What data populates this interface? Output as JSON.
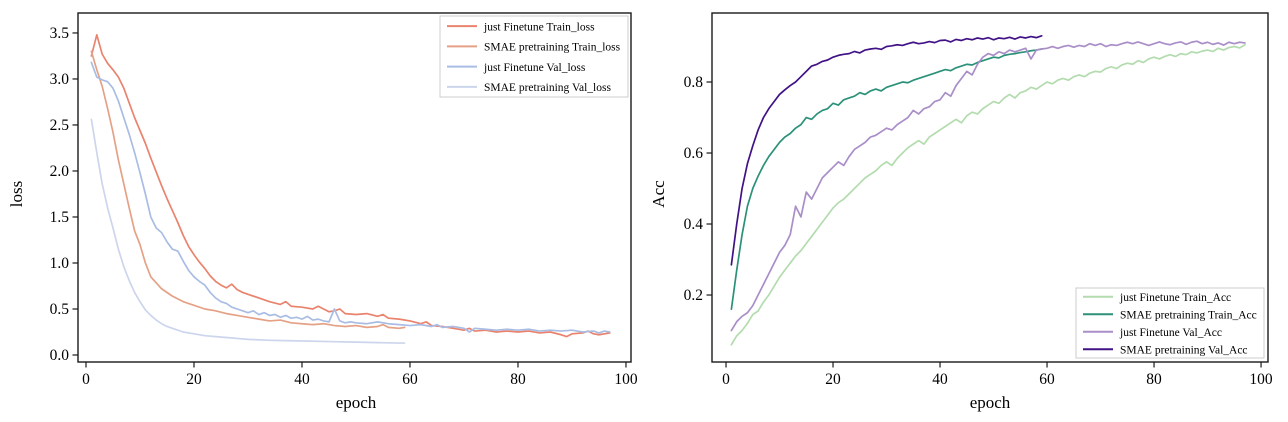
{
  "figure": {
    "background": "#ffffff",
    "text_color": "#000000",
    "spine_color": "#1a1a1a",
    "legend_border_color": "#cccccc",
    "legend_background": "#ffffff"
  },
  "chart_data": [
    {
      "id": "loss-chart",
      "type": "line",
      "title": "",
      "xlabel": "epoch",
      "ylabel": "loss",
      "grid": false,
      "legend_position": "upper right",
      "xlim": [
        -1.48,
        100.93
      ],
      "ylim": [
        -0.076,
        3.717
      ],
      "xticks": [
        {
          "v": 0,
          "label": "0"
        },
        {
          "v": 20,
          "label": "20"
        },
        {
          "v": 40,
          "label": "40"
        },
        {
          "v": 60,
          "label": "60"
        },
        {
          "v": 80,
          "label": "80"
        },
        {
          "v": 100,
          "label": "100"
        }
      ],
      "yticks": [
        {
          "v": 0.0,
          "label": "0.0"
        },
        {
          "v": 0.5,
          "label": "0.5"
        },
        {
          "v": 1.0,
          "label": "1.0"
        },
        {
          "v": 1.5,
          "label": "1.5"
        },
        {
          "v": 2.0,
          "label": "2.0"
        },
        {
          "v": 2.5,
          "label": "2.5"
        },
        {
          "v": 3.0,
          "label": "3.0"
        },
        {
          "v": 3.5,
          "label": "3.5"
        }
      ],
      "series": [
        {
          "id": "just-finetune-train-loss",
          "name": "just Finetune Train_loss",
          "color": "#e9836e",
          "x": [
            1,
            2,
            3,
            4,
            5,
            6,
            7,
            8,
            9,
            10,
            11,
            12,
            13,
            14,
            15,
            16,
            17,
            18,
            19,
            20,
            21,
            22,
            23,
            24,
            25,
            26,
            27,
            28,
            29,
            30,
            32,
            34,
            36,
            37,
            38,
            40,
            42,
            43,
            45,
            46,
            47,
            48,
            50,
            52,
            54,
            55,
            56,
            58,
            60,
            62,
            63,
            64,
            66,
            68,
            70,
            71,
            72,
            74,
            76,
            78,
            80,
            82,
            84,
            86,
            88,
            89,
            90,
            92,
            93,
            94,
            95,
            97
          ],
          "y": [
            3.25,
            3.48,
            3.27,
            3.17,
            3.1,
            3.02,
            2.9,
            2.74,
            2.58,
            2.44,
            2.3,
            2.14,
            1.99,
            1.84,
            1.7,
            1.57,
            1.44,
            1.3,
            1.18,
            1.09,
            1.01,
            0.94,
            0.86,
            0.8,
            0.76,
            0.73,
            0.77,
            0.71,
            0.68,
            0.66,
            0.62,
            0.58,
            0.55,
            0.58,
            0.53,
            0.52,
            0.5,
            0.53,
            0.47,
            0.48,
            0.5,
            0.45,
            0.44,
            0.45,
            0.42,
            0.44,
            0.4,
            0.39,
            0.37,
            0.34,
            0.36,
            0.32,
            0.31,
            0.29,
            0.27,
            0.29,
            0.26,
            0.27,
            0.25,
            0.26,
            0.25,
            0.26,
            0.24,
            0.25,
            0.22,
            0.2,
            0.23,
            0.24,
            0.26,
            0.23,
            0.22,
            0.24
          ]
        },
        {
          "id": "smae-pretraining-train-loss",
          "name": "SMAE pretraining Train_loss",
          "color": "#e5a186",
          "x": [
            1,
            2,
            3,
            4,
            5,
            6,
            7,
            8,
            9,
            10,
            11,
            12,
            14,
            16,
            18,
            20,
            22,
            24,
            26,
            28,
            30,
            32,
            34,
            36,
            38,
            40,
            42,
            44,
            46,
            48,
            50,
            52,
            54,
            55,
            56,
            58,
            59
          ],
          "y": [
            3.3,
            3.1,
            2.92,
            2.68,
            2.42,
            2.12,
            1.86,
            1.6,
            1.35,
            1.2,
            1.0,
            0.85,
            0.72,
            0.64,
            0.58,
            0.54,
            0.5,
            0.48,
            0.45,
            0.43,
            0.41,
            0.39,
            0.37,
            0.38,
            0.35,
            0.34,
            0.33,
            0.34,
            0.32,
            0.31,
            0.32,
            0.3,
            0.31,
            0.33,
            0.3,
            0.29,
            0.3
          ]
        },
        {
          "id": "just-finetune-val-loss",
          "name": "just Finetune Val_loss",
          "color": "#a9bde4",
          "x": [
            1,
            2,
            3,
            4,
            5,
            6,
            7,
            8,
            9,
            10,
            11,
            12,
            13,
            14,
            15,
            16,
            17,
            18,
            19,
            20,
            21,
            22,
            23,
            24,
            25,
            26,
            27,
            28,
            29,
            30,
            31,
            32,
            33,
            34,
            35,
            36,
            37,
            38,
            39,
            40,
            41,
            42,
            43,
            44,
            45,
            46,
            47,
            48,
            49,
            50,
            52,
            54,
            56,
            58,
            60,
            62,
            64,
            65,
            66,
            68,
            70,
            71,
            72,
            74,
            76,
            78,
            80,
            82,
            84,
            86,
            88,
            90,
            92,
            94,
            95,
            96,
            97
          ],
          "y": [
            3.18,
            3.02,
            2.99,
            2.97,
            2.9,
            2.76,
            2.58,
            2.4,
            2.2,
            1.98,
            1.75,
            1.5,
            1.38,
            1.33,
            1.23,
            1.15,
            1.13,
            1.02,
            0.92,
            0.85,
            0.8,
            0.76,
            0.68,
            0.62,
            0.58,
            0.56,
            0.52,
            0.5,
            0.48,
            0.46,
            0.48,
            0.44,
            0.46,
            0.43,
            0.44,
            0.41,
            0.43,
            0.4,
            0.41,
            0.39,
            0.42,
            0.38,
            0.39,
            0.37,
            0.36,
            0.5,
            0.37,
            0.35,
            0.36,
            0.35,
            0.34,
            0.36,
            0.34,
            0.33,
            0.32,
            0.33,
            0.31,
            0.33,
            0.3,
            0.31,
            0.29,
            0.25,
            0.29,
            0.28,
            0.27,
            0.28,
            0.27,
            0.28,
            0.26,
            0.27,
            0.26,
            0.27,
            0.25,
            0.26,
            0.24,
            0.26,
            0.25
          ]
        },
        {
          "id": "smae-pretraining-val-loss",
          "name": "SMAE pretraining Val_loss",
          "color": "#ccd5ec",
          "x": [
            1,
            2,
            3,
            4,
            5,
            6,
            7,
            8,
            9,
            10,
            11,
            12,
            13,
            14,
            15,
            16,
            18,
            20,
            22,
            24,
            26,
            28,
            30,
            34,
            38,
            42,
            46,
            50,
            54,
            58,
            59
          ],
          "y": [
            2.56,
            2.2,
            1.86,
            1.6,
            1.38,
            1.15,
            0.96,
            0.81,
            0.68,
            0.58,
            0.49,
            0.43,
            0.38,
            0.34,
            0.31,
            0.29,
            0.25,
            0.23,
            0.21,
            0.2,
            0.19,
            0.18,
            0.17,
            0.16,
            0.155,
            0.15,
            0.145,
            0.14,
            0.135,
            0.13,
            0.13
          ]
        }
      ]
    },
    {
      "id": "acc-chart",
      "type": "line",
      "title": "",
      "xlabel": "epoch",
      "ylabel": "Acc",
      "grid": false,
      "legend_position": "lower right",
      "xlim": [
        -2.62,
        101.3
      ],
      "ylim": [
        0.0113,
        0.9944
      ],
      "xticks": [
        {
          "v": 0,
          "label": "0"
        },
        {
          "v": 20,
          "label": "20"
        },
        {
          "v": 40,
          "label": "40"
        },
        {
          "v": 60,
          "label": "60"
        },
        {
          "v": 80,
          "label": "80"
        },
        {
          "v": 100,
          "label": "100"
        }
      ],
      "yticks": [
        {
          "v": 0.2,
          "label": "0.2"
        },
        {
          "v": 0.4,
          "label": "0.4"
        },
        {
          "v": 0.6,
          "label": "0.6"
        },
        {
          "v": 0.8,
          "label": "0.8"
        }
      ],
      "series": [
        {
          "id": "just-finetune-train-acc",
          "name": "just Finetune Train_Acc",
          "color": "#b3dcae",
          "x_range": [
            1,
            97
          ],
          "y": [
            0.06,
            0.085,
            0.1,
            0.12,
            0.145,
            0.155,
            0.18,
            0.2,
            0.225,
            0.25,
            0.27,
            0.29,
            0.31,
            0.325,
            0.345,
            0.365,
            0.385,
            0.405,
            0.425,
            0.445,
            0.46,
            0.47,
            0.485,
            0.5,
            0.515,
            0.53,
            0.54,
            0.55,
            0.565,
            0.575,
            0.565,
            0.585,
            0.6,
            0.615,
            0.625,
            0.635,
            0.625,
            0.645,
            0.655,
            0.665,
            0.675,
            0.685,
            0.695,
            0.685,
            0.705,
            0.715,
            0.71,
            0.725,
            0.735,
            0.745,
            0.74,
            0.755,
            0.765,
            0.755,
            0.77,
            0.775,
            0.785,
            0.78,
            0.79,
            0.8,
            0.795,
            0.805,
            0.81,
            0.805,
            0.815,
            0.82,
            0.815,
            0.825,
            0.83,
            0.828,
            0.838,
            0.843,
            0.838,
            0.848,
            0.853,
            0.85,
            0.86,
            0.855,
            0.865,
            0.87,
            0.865,
            0.872,
            0.877,
            0.872,
            0.88,
            0.877,
            0.885,
            0.882,
            0.887,
            0.89,
            0.886,
            0.895,
            0.89,
            0.897,
            0.9,
            0.896,
            0.905
          ]
        },
        {
          "id": "smae-pretraining-train-acc",
          "name": "SMAE pretraining Train_Acc",
          "color": "#2b9179",
          "x_range": [
            1,
            59
          ],
          "y": [
            0.16,
            0.27,
            0.37,
            0.45,
            0.5,
            0.535,
            0.565,
            0.59,
            0.61,
            0.63,
            0.645,
            0.655,
            0.67,
            0.68,
            0.7,
            0.695,
            0.71,
            0.72,
            0.725,
            0.74,
            0.735,
            0.75,
            0.755,
            0.76,
            0.77,
            0.765,
            0.775,
            0.78,
            0.775,
            0.785,
            0.79,
            0.795,
            0.8,
            0.798,
            0.805,
            0.81,
            0.815,
            0.82,
            0.825,
            0.83,
            0.835,
            0.832,
            0.84,
            0.845,
            0.85,
            0.848,
            0.855,
            0.86,
            0.865,
            0.87,
            0.868,
            0.875,
            0.878,
            0.88,
            0.883,
            0.885,
            0.888,
            0.89,
            0.893
          ]
        },
        {
          "id": "just-finetune-val-acc",
          "name": "just Finetune Val_Acc",
          "color": "#a98ec8",
          "x_range": [
            1,
            97
          ],
          "y": [
            0.1,
            0.125,
            0.14,
            0.15,
            0.17,
            0.2,
            0.23,
            0.26,
            0.29,
            0.32,
            0.34,
            0.37,
            0.45,
            0.42,
            0.49,
            0.47,
            0.5,
            0.53,
            0.545,
            0.56,
            0.575,
            0.565,
            0.59,
            0.61,
            0.62,
            0.63,
            0.645,
            0.65,
            0.66,
            0.67,
            0.665,
            0.68,
            0.69,
            0.7,
            0.72,
            0.71,
            0.725,
            0.73,
            0.745,
            0.75,
            0.77,
            0.76,
            0.79,
            0.81,
            0.83,
            0.82,
            0.85,
            0.87,
            0.88,
            0.875,
            0.885,
            0.88,
            0.89,
            0.885,
            0.89,
            0.895,
            0.865,
            0.89,
            0.893,
            0.895,
            0.9,
            0.895,
            0.9,
            0.903,
            0.898,
            0.903,
            0.9,
            0.908,
            0.903,
            0.908,
            0.9,
            0.905,
            0.903,
            0.908,
            0.912,
            0.908,
            0.913,
            0.908,
            0.903,
            0.908,
            0.913,
            0.908,
            0.905,
            0.91,
            0.913,
            0.906,
            0.912,
            0.915,
            0.908,
            0.912,
            0.906,
            0.91,
            0.904,
            0.912,
            0.908,
            0.912,
            0.91
          ]
        },
        {
          "id": "smae-pretraining-val-acc",
          "name": "SMAE pretraining Val_Acc",
          "color": "#411286",
          "x_range": [
            1,
            59
          ],
          "y": [
            0.285,
            0.4,
            0.5,
            0.57,
            0.62,
            0.665,
            0.7,
            0.725,
            0.745,
            0.765,
            0.778,
            0.79,
            0.8,
            0.815,
            0.83,
            0.845,
            0.85,
            0.858,
            0.862,
            0.87,
            0.875,
            0.878,
            0.88,
            0.886,
            0.882,
            0.89,
            0.893,
            0.895,
            0.892,
            0.9,
            0.902,
            0.905,
            0.903,
            0.908,
            0.912,
            0.908,
            0.91,
            0.914,
            0.911,
            0.917,
            0.918,
            0.913,
            0.92,
            0.917,
            0.922,
            0.919,
            0.924,
            0.921,
            0.925,
            0.919,
            0.924,
            0.922,
            0.926,
            0.921,
            0.927,
            0.924,
            0.928,
            0.925,
            0.93
          ]
        }
      ]
    }
  ]
}
